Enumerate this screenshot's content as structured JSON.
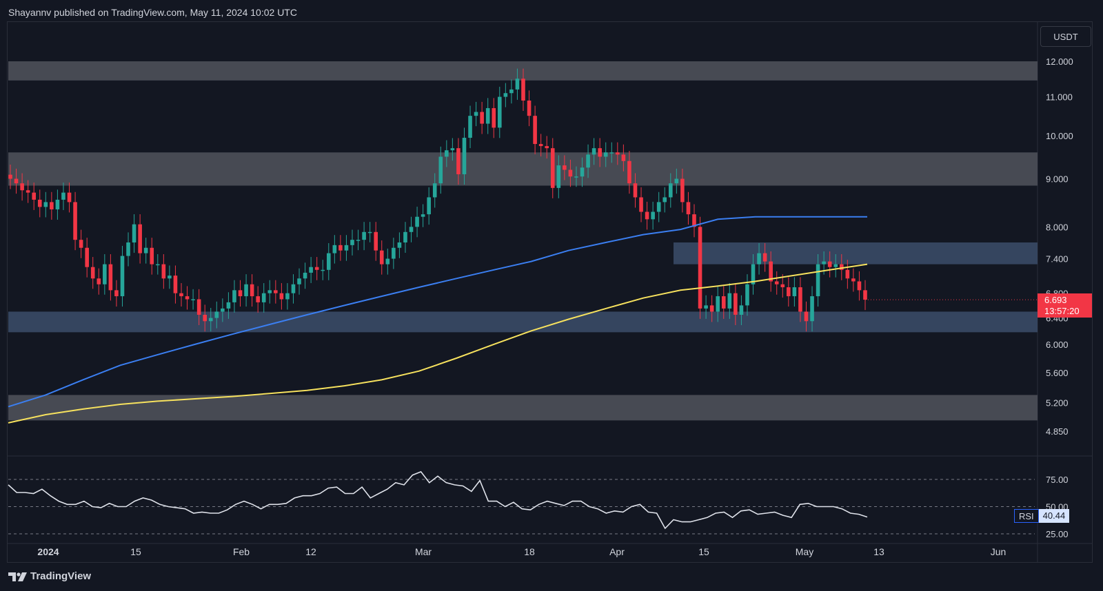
{
  "header": {
    "published_text": "Shayannv published on TradingView.com, May 11, 2024 10:02 UTC"
  },
  "price_axis": {
    "currency": "USDT",
    "labels": [
      "12.000",
      "11.000",
      "10.000",
      "9.000",
      "8.000",
      "7.400",
      "6.800",
      "6.400",
      "6.000",
      "5.600",
      "5.200",
      "4.850"
    ]
  },
  "last_price": {
    "value": "6.693",
    "countdown": "13:57:20"
  },
  "rsi": {
    "name": "RSI",
    "value": "40.44",
    "levels": [
      "75.00",
      "50.00",
      "25.00"
    ]
  },
  "time_axis": {
    "labels": [
      "2024",
      "15",
      "Feb",
      "12",
      "Mar",
      "18",
      "Apr",
      "15",
      "May",
      "13",
      "Jun"
    ]
  },
  "footer": {
    "brand": "TradingView"
  },
  "colors": {
    "background": "#131722",
    "up": "#26a69a",
    "down": "#f23645",
    "ma_long": "#f7e25e",
    "ma_short": "#3b7ff2",
    "zone_gray": "#4a4d56",
    "zone_blue": "#3a4a66",
    "rsi_line": "#e0e3eb"
  },
  "chart_data": {
    "type": "candlestick",
    "price_range": [
      4.7,
      12.4
    ],
    "price_scale": "log",
    "zones": [
      {
        "from": 11.45,
        "to": 12.0,
        "tone": "gray"
      },
      {
        "from": 8.85,
        "to": 9.6,
        "tone": "gray"
      },
      {
        "from": 7.3,
        "to": 7.7,
        "tone": "blue"
      },
      {
        "from": 6.18,
        "to": 6.5,
        "tone": "blue"
      },
      {
        "from": 4.98,
        "to": 5.3,
        "tone": "gray"
      }
    ],
    "candles_close": [
      9.0,
      8.9,
      8.75,
      8.7,
      8.55,
      8.4,
      8.5,
      8.35,
      8.55,
      8.7,
      8.5,
      7.75,
      7.6,
      7.25,
      7.05,
      6.95,
      7.3,
      6.85,
      6.75,
      7.45,
      7.7,
      8.05,
      7.5,
      7.6,
      7.3,
      7.3,
      7.05,
      7.1,
      6.8,
      6.75,
      6.7,
      6.7,
      6.45,
      6.35,
      6.4,
      6.5,
      6.55,
      6.65,
      6.85,
      6.75,
      6.95,
      6.75,
      6.65,
      6.8,
      6.85,
      6.8,
      6.7,
      6.8,
      6.95,
      7.05,
      7.15,
      7.25,
      7.2,
      7.2,
      7.5,
      7.65,
      7.55,
      7.65,
      7.75,
      7.75,
      7.9,
      7.9,
      7.55,
      7.3,
      7.4,
      7.6,
      7.7,
      7.9,
      8.0,
      8.2,
      8.25,
      8.6,
      8.9,
      9.5,
      9.65,
      9.7,
      9.1,
      9.95,
      10.5,
      10.6,
      10.3,
      10.7,
      10.2,
      11.0,
      11.1,
      11.2,
      11.5,
      10.9,
      10.5,
      9.8,
      9.75,
      9.7,
      8.8,
      9.3,
      9.2,
      9.05,
      9.05,
      9.25,
      9.55,
      9.7,
      9.5,
      9.6,
      9.6,
      9.55,
      9.4,
      8.9,
      8.6,
      8.3,
      8.15,
      8.3,
      8.5,
      8.6,
      8.9,
      9.0,
      8.5,
      8.25,
      8.0,
      6.55,
      6.6,
      6.5,
      6.75,
      6.55,
      6.8,
      6.45,
      6.6,
      6.95,
      7.3,
      7.5,
      7.35,
      7.0,
      6.95,
      6.9,
      6.75,
      6.9,
      6.5,
      6.35,
      6.75,
      7.3,
      7.35,
      7.25,
      7.3,
      7.2,
      7.05,
      7.0,
      6.85,
      6.693
    ],
    "ma_short_values": [
      5.15,
      5.3,
      5.5,
      5.7,
      5.85,
      6.0,
      6.15,
      6.3,
      6.45,
      6.6,
      6.75,
      6.9,
      7.05,
      7.2,
      7.35,
      7.55,
      7.7,
      7.85,
      7.95,
      8.15,
      8.2,
      8.2,
      8.2,
      8.2
    ],
    "ma_long_values": [
      4.95,
      5.05,
      5.12,
      5.18,
      5.22,
      5.25,
      5.28,
      5.32,
      5.36,
      5.42,
      5.5,
      5.62,
      5.8,
      6.0,
      6.2,
      6.38,
      6.55,
      6.72,
      6.85,
      6.92,
      7.0,
      7.1,
      7.2,
      7.3
    ],
    "rsi_values": [
      70,
      63,
      63,
      62,
      66,
      60,
      55,
      52,
      52,
      55,
      50,
      49,
      53,
      50,
      50,
      55,
      58,
      56,
      52,
      50,
      49,
      48,
      44,
      45,
      44,
      44,
      47,
      52,
      55,
      52,
      48,
      52,
      52,
      53,
      58,
      60,
      60,
      62,
      67,
      68,
      62,
      62,
      68,
      58,
      62,
      66,
      72,
      70,
      79,
      82,
      72,
      78,
      72,
      70,
      69,
      64,
      74,
      55,
      55,
      50,
      54,
      48,
      47,
      52,
      55,
      53,
      51,
      55,
      55,
      50,
      48,
      44,
      46,
      45,
      50,
      52,
      45,
      44,
      30,
      38,
      36,
      36,
      38,
      40,
      44,
      45,
      40,
      46,
      47,
      43,
      44,
      45,
      42,
      40,
      52,
      53,
      50,
      50,
      50,
      48,
      44,
      43,
      40.44
    ],
    "x_labels": [
      "2024",
      "15",
      "Feb",
      "12",
      "Mar",
      "18",
      "Apr",
      "15",
      "May",
      "13",
      "Jun"
    ]
  }
}
